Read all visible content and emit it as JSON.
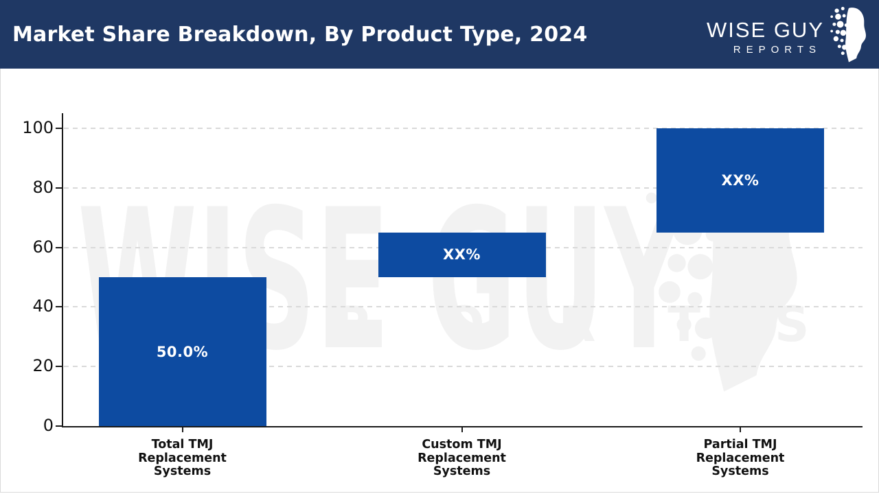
{
  "header": {
    "title": "Market Share Breakdown, By Product Type, 2024",
    "logo": {
      "name": "WISE GUY",
      "sub": "REPORTS"
    }
  },
  "watermark": {
    "name": "WISE GUY",
    "sub": "REPORTS"
  },
  "colors": {
    "header_bg": "#1f3864",
    "bar_fill": "#0d4ba1",
    "grid": "#d9d9d9",
    "axis": "#1a1a1a",
    "watermark": "#f2f2f2",
    "bar_label": "#ffffff",
    "text": "#111111"
  },
  "chart_data": {
    "type": "bar",
    "subtype": "waterfall",
    "title": "Market Share Breakdown, By Product Type, 2024",
    "categories": [
      "Total TMJ Replacement Systems",
      "Custom TMJ Replacement Systems",
      "Partial TMJ Replacement Systems"
    ],
    "bars": [
      {
        "category": "Total TMJ Replacement Systems",
        "start": 0,
        "end": 50,
        "value_label": "50.0%"
      },
      {
        "category": "Custom TMJ Replacement Systems",
        "start": 50,
        "end": 65,
        "value_label": "XX%"
      },
      {
        "category": "Partial TMJ Replacement Systems",
        "start": 65,
        "end": 100,
        "value_label": "XX%"
      }
    ],
    "ylim": [
      0,
      105
    ],
    "yticks": [
      0,
      20,
      40,
      60,
      80,
      100
    ],
    "xlabel": "",
    "ylabel": "",
    "grid": "horizontal-dashed",
    "legend": null
  }
}
